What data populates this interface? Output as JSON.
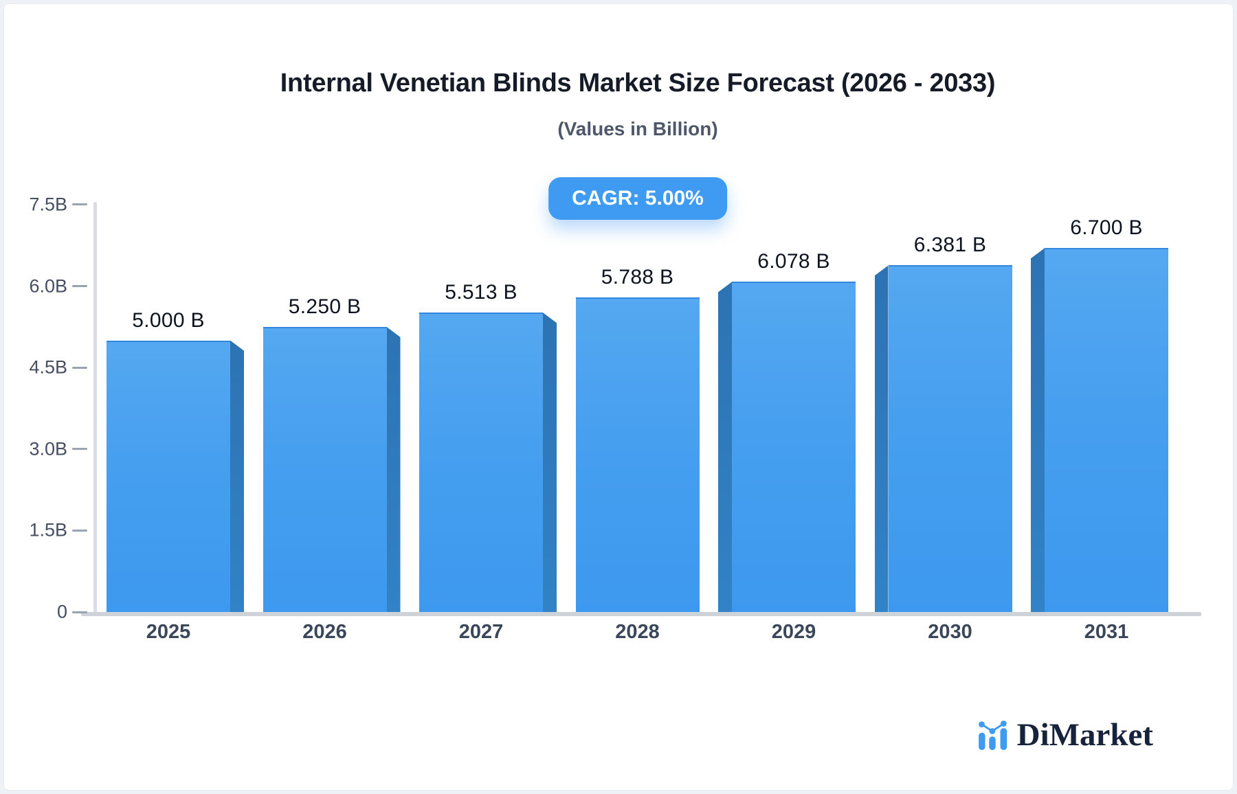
{
  "header": {
    "title": "Internal Venetian Blinds Market Size Forecast (2026 - 2033)",
    "subtitle": "(Values in Billion)",
    "cagr_badge": "CAGR: 5.00%"
  },
  "chart_data": {
    "type": "bar",
    "title": "Internal Venetian Blinds Market Size Forecast (2026 - 2033)",
    "subtitle": "(Values in Billion)",
    "cagr": "5.00%",
    "unit": "Billion",
    "categories": [
      "2025",
      "2026",
      "2027",
      "2028",
      "2029",
      "2030",
      "2031"
    ],
    "values": [
      5.0,
      5.25,
      5.513,
      5.788,
      6.078,
      6.381,
      6.7
    ],
    "bar_labels": [
      "5.000 B",
      "5.250 B",
      "5.513 B",
      "5.788 B",
      "6.078 B",
      "6.381 B",
      "6.700 B"
    ],
    "y_axis": {
      "tick_labels": [
        "7.5B",
        "6.0B",
        "4.5B",
        "3.0B",
        "1.5B",
        "0"
      ],
      "tick_values": [
        7.5,
        6.0,
        4.5,
        3.0,
        1.5,
        0
      ],
      "range": [
        0,
        7.5
      ],
      "gridlines": false
    },
    "legend_position": "none",
    "colors": {
      "bar_face_top": "#55a8f1",
      "bar_face_bottom": "#3d99ef",
      "bar_side": "#2f7abb",
      "badge_background": "#3f9bf1",
      "badge_text": "#ffffff",
      "axis_line": "#d9dde3",
      "baseline": "#ced3da",
      "tick_dash": "#9aa4b0",
      "value_label_text": "#0e141f",
      "axis_label_text": "#3a465a"
    }
  },
  "branding": {
    "logo_text": "DiMarket",
    "logo_icon": "mini-bar-chart-icon",
    "logo_icon_color": "#3f9bf0",
    "logo_text_color": "#16233b"
  }
}
